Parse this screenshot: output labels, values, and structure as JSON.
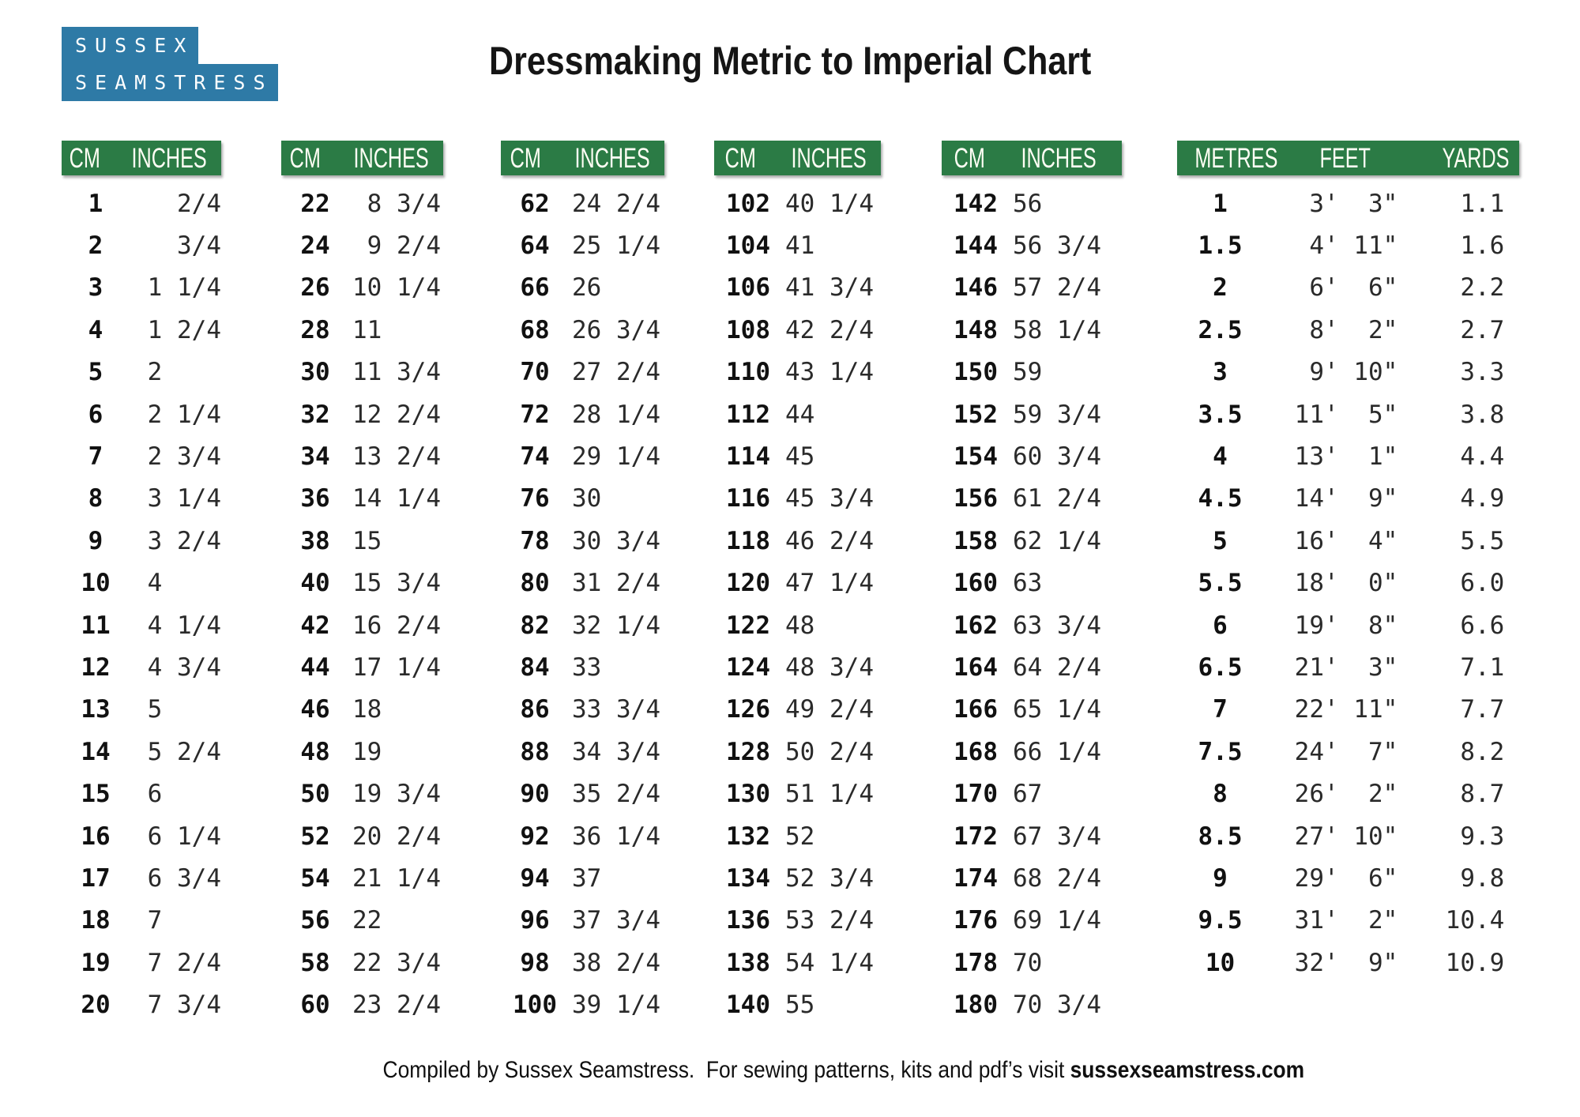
{
  "colors": {
    "header_green": "#2b7b45",
    "logo_blue": "#2e7aa6"
  },
  "logo": {
    "line1": "SUSSEX",
    "line2": "SEAMSTRESS"
  },
  "title": "Dressmaking Metric to Imperial Chart",
  "cm_tables": [
    {
      "headers": [
        "CM",
        "INCHES"
      ],
      "rows": [
        [
          "1",
          "2/4"
        ],
        [
          "2",
          "3/4"
        ],
        [
          "3",
          "1 1/4"
        ],
        [
          "4",
          "1 2/4"
        ],
        [
          "5",
          "2"
        ],
        [
          "6",
          "2 1/4"
        ],
        [
          "7",
          "2 3/4"
        ],
        [
          "8",
          "3 1/4"
        ],
        [
          "9",
          "3 2/4"
        ],
        [
          "10",
          "4"
        ],
        [
          "11",
          "4 1/4"
        ],
        [
          "12",
          "4 3/4"
        ],
        [
          "13",
          "5"
        ],
        [
          "14",
          "5 2/4"
        ],
        [
          "15",
          "6"
        ],
        [
          "16",
          "6 1/4"
        ],
        [
          "17",
          "6 3/4"
        ],
        [
          "18",
          "7"
        ],
        [
          "19",
          "7 2/4"
        ],
        [
          "20",
          "7 3/4"
        ]
      ]
    },
    {
      "headers": [
        "CM",
        "INCHES"
      ],
      "rows": [
        [
          "22",
          "8 3/4"
        ],
        [
          "24",
          "9 2/4"
        ],
        [
          "26",
          "10 1/4"
        ],
        [
          "28",
          "11"
        ],
        [
          "30",
          "11 3/4"
        ],
        [
          "32",
          "12 2/4"
        ],
        [
          "34",
          "13 2/4"
        ],
        [
          "36",
          "14 1/4"
        ],
        [
          "38",
          "15"
        ],
        [
          "40",
          "15 3/4"
        ],
        [
          "42",
          "16 2/4"
        ],
        [
          "44",
          "17 1/4"
        ],
        [
          "46",
          "18"
        ],
        [
          "48",
          "19"
        ],
        [
          "50",
          "19 3/4"
        ],
        [
          "52",
          "20 2/4"
        ],
        [
          "54",
          "21 1/4"
        ],
        [
          "56",
          "22"
        ],
        [
          "58",
          "22 3/4"
        ],
        [
          "60",
          "23 2/4"
        ]
      ]
    },
    {
      "headers": [
        "CM",
        "INCHES"
      ],
      "rows": [
        [
          "62",
          "24 2/4"
        ],
        [
          "64",
          "25 1/4"
        ],
        [
          "66",
          "26"
        ],
        [
          "68",
          "26 3/4"
        ],
        [
          "70",
          "27 2/4"
        ],
        [
          "72",
          "28 1/4"
        ],
        [
          "74",
          "29 1/4"
        ],
        [
          "76",
          "30"
        ],
        [
          "78",
          "30 3/4"
        ],
        [
          "80",
          "31 2/4"
        ],
        [
          "82",
          "32 1/4"
        ],
        [
          "84",
          "33"
        ],
        [
          "86",
          "33 3/4"
        ],
        [
          "88",
          "34 3/4"
        ],
        [
          "90",
          "35 2/4"
        ],
        [
          "92",
          "36 1/4"
        ],
        [
          "94",
          "37"
        ],
        [
          "96",
          "37 3/4"
        ],
        [
          "98",
          "38 2/4"
        ],
        [
          "100",
          "39 1/4"
        ]
      ]
    },
    {
      "headers": [
        "CM",
        "INCHES"
      ],
      "rows": [
        [
          "102",
          "40 1/4"
        ],
        [
          "104",
          "41"
        ],
        [
          "106",
          "41 3/4"
        ],
        [
          "108",
          "42 2/4"
        ],
        [
          "110",
          "43 1/4"
        ],
        [
          "112",
          "44"
        ],
        [
          "114",
          "45"
        ],
        [
          "116",
          "45 3/4"
        ],
        [
          "118",
          "46 2/4"
        ],
        [
          "120",
          "47 1/4"
        ],
        [
          "122",
          "48"
        ],
        [
          "124",
          "48 3/4"
        ],
        [
          "126",
          "49 2/4"
        ],
        [
          "128",
          "50 2/4"
        ],
        [
          "130",
          "51 1/4"
        ],
        [
          "132",
          "52"
        ],
        [
          "134",
          "52 3/4"
        ],
        [
          "136",
          "53 2/4"
        ],
        [
          "138",
          "54 1/4"
        ],
        [
          "140",
          "55"
        ]
      ]
    },
    {
      "headers": [
        "CM",
        "INCHES"
      ],
      "rows": [
        [
          "142",
          "56"
        ],
        [
          "144",
          "56 3/4"
        ],
        [
          "146",
          "57 2/4"
        ],
        [
          "148",
          "58 1/4"
        ],
        [
          "150",
          "59"
        ],
        [
          "152",
          "59 3/4"
        ],
        [
          "154",
          "60 3/4"
        ],
        [
          "156",
          "61 2/4"
        ],
        [
          "158",
          "62 1/4"
        ],
        [
          "160",
          "63"
        ],
        [
          "162",
          "63 3/4"
        ],
        [
          "164",
          "64 2/4"
        ],
        [
          "166",
          "65 1/4"
        ],
        [
          "168",
          "66 1/4"
        ],
        [
          "170",
          "67"
        ],
        [
          "172",
          "67 3/4"
        ],
        [
          "174",
          "68 2/4"
        ],
        [
          "176",
          "69 1/4"
        ],
        [
          "178",
          "70"
        ],
        [
          "180",
          "70 3/4"
        ]
      ]
    }
  ],
  "metres_table": {
    "headers": [
      "METRES",
      "FEET",
      "YARDS"
    ],
    "rows": [
      [
        "1",
        "3' 3\"",
        "1.1"
      ],
      [
        "1.5",
        "4' 11\"",
        "1.6"
      ],
      [
        "2",
        "6' 6\"",
        "2.2"
      ],
      [
        "2.5",
        "8' 2\"",
        "2.7"
      ],
      [
        "3",
        "9' 10\"",
        "3.3"
      ],
      [
        "3.5",
        "11' 5\"",
        "3.8"
      ],
      [
        "4",
        "13' 1\"",
        "4.4"
      ],
      [
        "4.5",
        "14' 9\"",
        "4.9"
      ],
      [
        "5",
        "16' 4\"",
        "5.5"
      ],
      [
        "5.5",
        "18' 0\"",
        "6.0"
      ],
      [
        "6",
        "19' 8\"",
        "6.6"
      ],
      [
        "6.5",
        "21' 3\"",
        "7.1"
      ],
      [
        "7",
        "22' 11\"",
        "7.7"
      ],
      [
        "7.5",
        "24' 7\"",
        "8.2"
      ],
      [
        "8",
        "26' 2\"",
        "8.7"
      ],
      [
        "8.5",
        "27' 10\"",
        "9.3"
      ],
      [
        "9",
        "29' 6\"",
        "9.8"
      ],
      [
        "9.5",
        "31' 2\"",
        "10.4"
      ],
      [
        "10",
        "32' 9\"",
        "10.9"
      ]
    ]
  },
  "footer": {
    "text": "Compiled by Sussex Seamstress.  For sewing patterns, kits and pdf’s visit ",
    "link": "sussexseamstress.com"
  }
}
